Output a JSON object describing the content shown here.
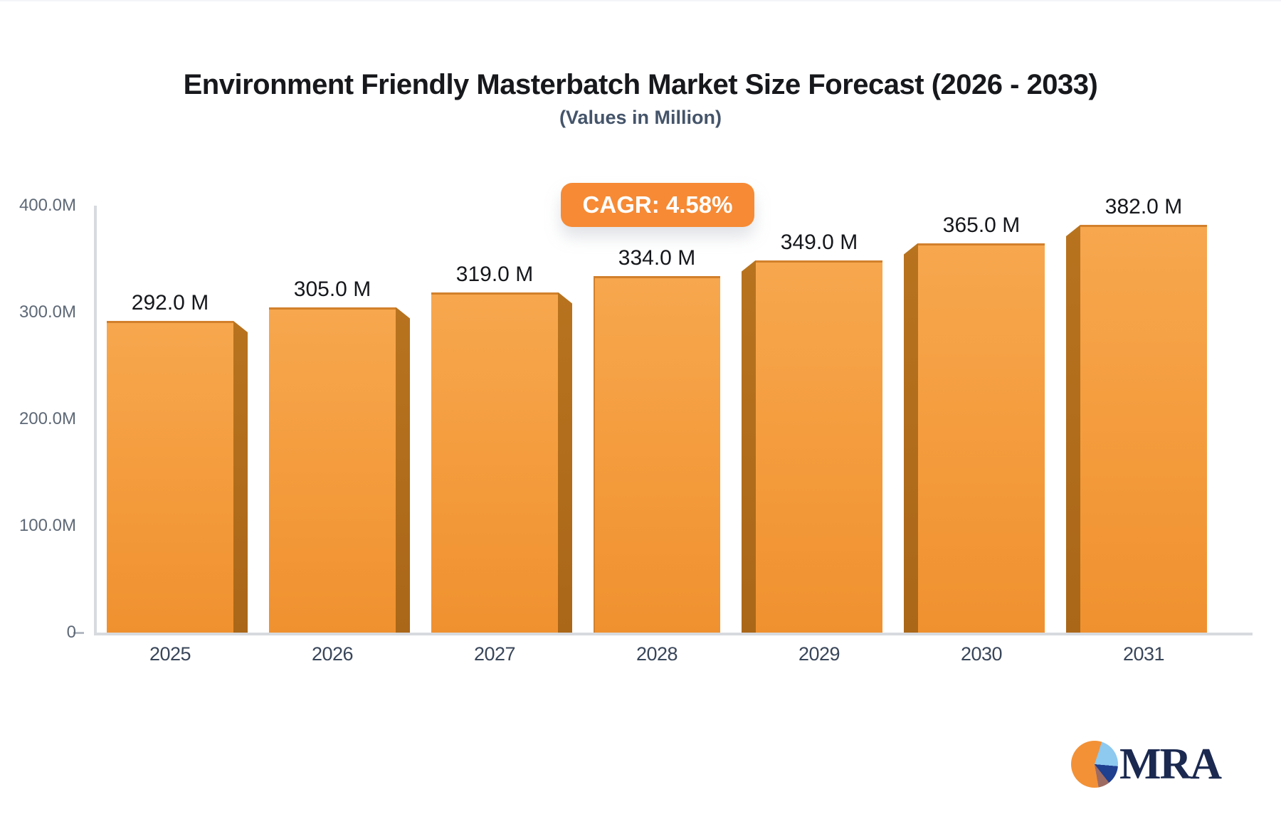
{
  "title": "Environment Friendly Masterbatch Market Size Forecast (2026 - 2033)",
  "subtitle": "(Values in Million)",
  "cagr_badge": "CAGR: 4.58%",
  "chart_data": {
    "type": "bar",
    "categories": [
      "2025",
      "2026",
      "2027",
      "2028",
      "2029",
      "2030",
      "2031"
    ],
    "values": [
      292,
      305,
      319,
      334,
      349,
      365,
      382
    ],
    "bar_labels": [
      "292.0 M",
      "305.0 M",
      "319.0 M",
      "334.0 M",
      "349.0 M",
      "365.0 M",
      "382.0 M"
    ],
    "title": "Environment Friendly Masterbatch Market Size Forecast (2026 - 2033)",
    "subtitle": "(Values in Million)",
    "annotation": "CAGR: 4.58%",
    "xlabel": "",
    "ylabel": "",
    "ylim": [
      0,
      400
    ],
    "yticks": [
      {
        "label": "400.0M",
        "value": 400
      },
      {
        "label": "300.0M",
        "value": 300
      },
      {
        "label": "200.0M",
        "value": 200
      },
      {
        "label": "100.0M",
        "value": 100
      },
      {
        "label": "0",
        "value": 0
      }
    ],
    "grid": false,
    "legend": false,
    "bar_style": "3d-perspective-center"
  },
  "colors": {
    "bar_face_top": "#f7a74e",
    "bar_face_bottom": "#f0912f",
    "bar_top_edge": "#d2802c",
    "bar_side_3d": "#b2701e",
    "badge_background": "#f68a35",
    "badge_text": "#ffffff",
    "axis_line": "#d7dadf",
    "y_tick_text": "#5e6977",
    "x_tick_text": "#39465a",
    "value_label_text": "#15171b",
    "title_text": "#17181c",
    "subtitle_text": "#44546a",
    "logo_navy": "#1b2950",
    "logo_pie_orange": "#f39136",
    "logo_pie_lightblue": "#8ec9f0",
    "logo_pie_darkblue": "#1f3f8f",
    "logo_pie_maroon": "#9e6b63"
  },
  "logo": {
    "text": "MRA"
  }
}
